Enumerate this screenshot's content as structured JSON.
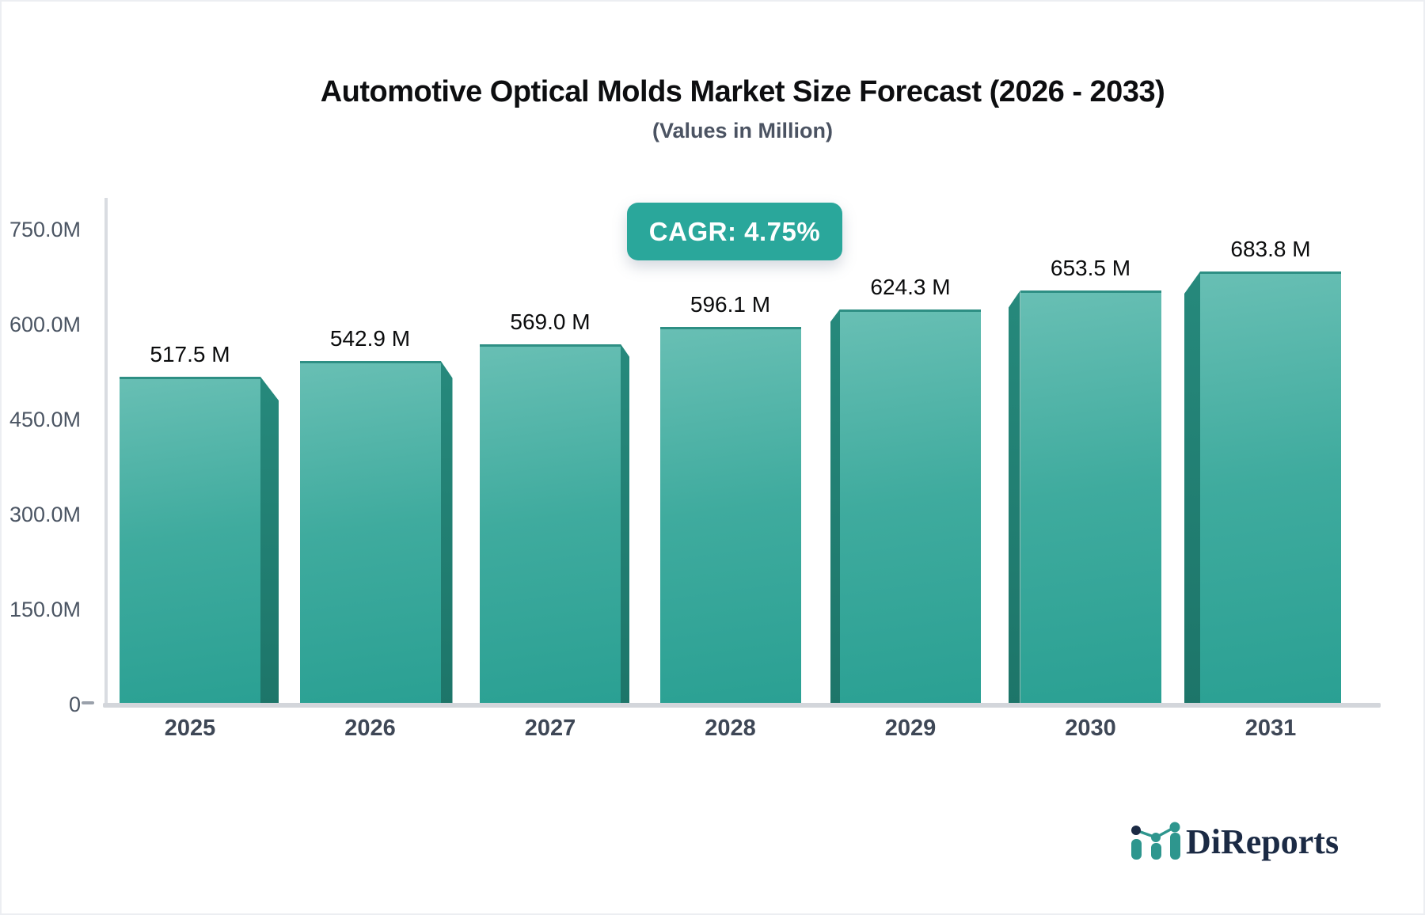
{
  "chart_data": {
    "type": "bar",
    "title": "Automotive Optical Molds Market Size Forecast (2026 - 2033)",
    "subtitle": "(Values in Million)",
    "annotation": "CAGR: 4.75%",
    "categories": [
      "2025",
      "2026",
      "2027",
      "2028",
      "2029",
      "2030",
      "2031"
    ],
    "values": [
      517.5,
      542.9,
      569.0,
      596.1,
      624.3,
      653.5,
      683.8
    ],
    "bar_labels": [
      "517.5 M",
      "542.9 M",
      "569.0 M",
      "596.1 M",
      "624.3 M",
      "653.5 M",
      "683.8 M"
    ],
    "xlabel": "",
    "ylabel": "",
    "ylim": [
      0,
      750
    ],
    "yticks": [
      {
        "label": "0",
        "value": 0
      },
      {
        "label": "150.0M",
        "value": 150
      },
      {
        "label": "300.0M",
        "value": 300
      },
      {
        "label": "450.0M",
        "value": 450
      },
      {
        "label": "600.0M",
        "value": 600
      },
      {
        "label": "750.0M",
        "value": 750
      }
    ],
    "grid": false,
    "legend": false,
    "bar_style": "3d-perspective"
  },
  "colors": {
    "bar_gradient_top": "#68bfb4",
    "bar_gradient_bottom": "#2aa093",
    "bar_side_3d": "#217e73",
    "bar_top_edge": "#2e8f84",
    "badge_background": "#2aa79b",
    "badge_text": "#ffffff",
    "axis_line": "#d6d9de",
    "axis_text": "#4b5563",
    "title_text": "#0d0e10",
    "subtitle_text": "#4b5362",
    "logo_teal": "#2e968e",
    "logo_navy": "#1b2a44"
  },
  "logo": {
    "text": "DiReports"
  }
}
